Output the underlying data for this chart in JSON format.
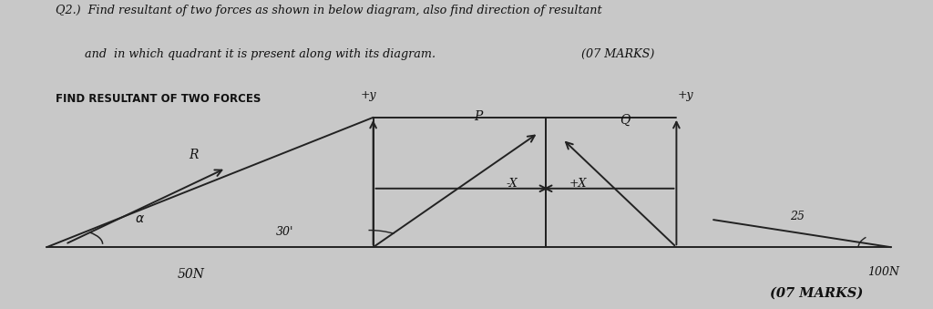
{
  "bg_color": "#c8c8c8",
  "paper_color": "#e0e0e0",
  "text_color": "#111111",
  "line_color": "#222222",
  "title_line1": "Q2.)  Find resultant of two forces as shown in below diagram, also find direction of resultant",
  "title_line2": "        and  in which quadrant it is present along with its diagram.                                        (07 MARKS)",
  "subtitle": "FIND RESULTANT OF TWO FORCES",
  "marks_bottom": "(07 MARKS)"
}
